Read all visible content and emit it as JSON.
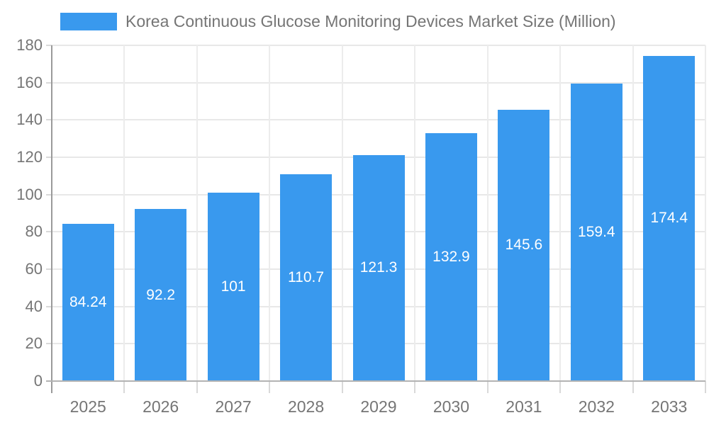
{
  "colors": {
    "bar": "#3999ee",
    "axis_text": "#757575",
    "bar_label_text": "#ffffff",
    "gridline": "#e8e8e8",
    "axis_line": "#9a9a9a"
  },
  "chart_data": {
    "type": "bar",
    "title": "Korea Continuous Glucose Monitoring Devices Market Size (Million)",
    "categories": [
      "2025",
      "2026",
      "2027",
      "2028",
      "2029",
      "2030",
      "2031",
      "2032",
      "2033"
    ],
    "values": [
      84.24,
      92.2,
      101,
      110.7,
      121.3,
      132.9,
      145.6,
      159.4,
      174.4
    ],
    "value_labels": [
      "84.24",
      "92.2",
      "101",
      "110.7",
      "121.3",
      "132.9",
      "145.6",
      "159.4",
      "174.4"
    ],
    "y_ticks": [
      "0",
      "20",
      "40",
      "60",
      "80",
      "100",
      "120",
      "140",
      "160",
      "180"
    ],
    "ylim": [
      0,
      180
    ],
    "xlabel": "",
    "ylabel": "",
    "grid": true,
    "legend_position": "top-left",
    "value_label_position": "inside-center"
  }
}
